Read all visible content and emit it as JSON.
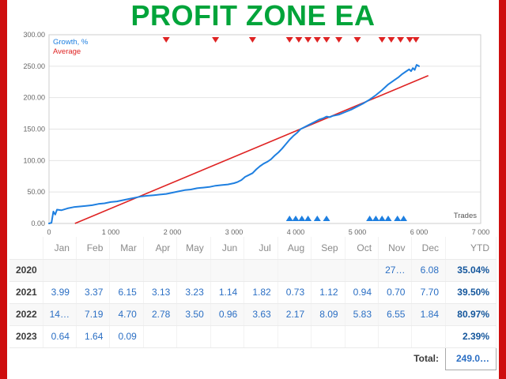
{
  "title": "PROFIT ZONE EA",
  "colors": {
    "title_green": "#00a43a",
    "growth_blue": "#1e7fe0",
    "average_red": "#df2323",
    "side_red": "#ce0e0e",
    "grid": "#e4e4e4",
    "axis_text": "#666666"
  },
  "chart_data": {
    "type": "line",
    "title": "",
    "xlabel_corner": "Trades",
    "xlim": [
      0,
      7000
    ],
    "ylim": [
      0,
      300
    ],
    "grid": "horizontal",
    "legend_position": "top-left",
    "x_ticks": [
      "0",
      "1 000",
      "2 000",
      "3 000",
      "4 000",
      "5 000",
      "6 000",
      "7 000"
    ],
    "x_tick_values": [
      0,
      1000,
      2000,
      3000,
      4000,
      5000,
      6000,
      7000
    ],
    "y_ticks": [
      "0.00",
      "50.00",
      "100.00",
      "150.00",
      "200.00",
      "250.00",
      "300.00"
    ],
    "y_tick_values": [
      0,
      50,
      100,
      150,
      200,
      250,
      300
    ],
    "legend": [
      {
        "label": "Growth, %",
        "color": "#1e7fe0"
      },
      {
        "label": "Average",
        "color": "#df2323"
      }
    ],
    "series": [
      {
        "name": "Growth, %",
        "type": "line",
        "color": "#1e7fe0",
        "points": [
          [
            0,
            0
          ],
          [
            40,
            1
          ],
          [
            70,
            19
          ],
          [
            100,
            14
          ],
          [
            130,
            22
          ],
          [
            200,
            21
          ],
          [
            300,
            24
          ],
          [
            400,
            26
          ],
          [
            500,
            27
          ],
          [
            600,
            28
          ],
          [
            700,
            29
          ],
          [
            800,
            31
          ],
          [
            900,
            32
          ],
          [
            1000,
            34
          ],
          [
            1100,
            35
          ],
          [
            1200,
            37
          ],
          [
            1300,
            39
          ],
          [
            1400,
            41
          ],
          [
            1500,
            43
          ],
          [
            1600,
            44
          ],
          [
            1700,
            45
          ],
          [
            1800,
            46
          ],
          [
            1900,
            47
          ],
          [
            2000,
            49
          ],
          [
            2100,
            51
          ],
          [
            2200,
            53
          ],
          [
            2300,
            54
          ],
          [
            2400,
            56
          ],
          [
            2500,
            57
          ],
          [
            2600,
            58
          ],
          [
            2700,
            60
          ],
          [
            2800,
            61
          ],
          [
            2900,
            62
          ],
          [
            3000,
            64
          ],
          [
            3060,
            66
          ],
          [
            3120,
            69
          ],
          [
            3180,
            74
          ],
          [
            3240,
            77
          ],
          [
            3300,
            80
          ],
          [
            3360,
            86
          ],
          [
            3420,
            91
          ],
          [
            3480,
            95
          ],
          [
            3540,
            98
          ],
          [
            3600,
            102
          ],
          [
            3660,
            108
          ],
          [
            3720,
            113
          ],
          [
            3780,
            119
          ],
          [
            3840,
            126
          ],
          [
            3900,
            133
          ],
          [
            3960,
            139
          ],
          [
            4020,
            144
          ],
          [
            4080,
            150
          ],
          [
            4140,
            153
          ],
          [
            4200,
            156
          ],
          [
            4260,
            159
          ],
          [
            4320,
            162
          ],
          [
            4380,
            165
          ],
          [
            4440,
            167
          ],
          [
            4500,
            170
          ],
          [
            4550,
            169
          ],
          [
            4600,
            171
          ],
          [
            4700,
            173
          ],
          [
            4800,
            177
          ],
          [
            4900,
            181
          ],
          [
            5000,
            186
          ],
          [
            5100,
            191
          ],
          [
            5200,
            197
          ],
          [
            5300,
            204
          ],
          [
            5400,
            212
          ],
          [
            5500,
            221
          ],
          [
            5600,
            228
          ],
          [
            5660,
            232
          ],
          [
            5720,
            237
          ],
          [
            5780,
            241
          ],
          [
            5840,
            245
          ],
          [
            5870,
            242
          ],
          [
            5900,
            247
          ],
          [
            5930,
            244
          ],
          [
            5960,
            252
          ],
          [
            6000,
            250
          ]
        ]
      },
      {
        "name": "Average",
        "type": "line",
        "color": "#df2323",
        "points": [
          [
            420,
            0
          ],
          [
            6150,
            235
          ]
        ]
      }
    ],
    "markers": {
      "top_red_x": [
        1900,
        2700,
        3300,
        3900,
        4050,
        4200,
        4350,
        4500,
        4700,
        5000,
        5400,
        5550,
        5700,
        5850,
        5950
      ],
      "bottom_blue_x": [
        3900,
        4000,
        4100,
        4200,
        4350,
        4500,
        5200,
        5300,
        5400,
        5500,
        5650,
        5750
      ]
    }
  },
  "table": {
    "columns": [
      "",
      "Jan",
      "Feb",
      "Mar",
      "Apr",
      "May",
      "Jun",
      "Jul",
      "Aug",
      "Sep",
      "Oct",
      "Nov",
      "Dec",
      "YTD"
    ],
    "rows": [
      {
        "year": "2020",
        "values": [
          "",
          "",
          "",
          "",
          "",
          "",
          "",
          "",
          "",
          "",
          "27…",
          "6.08"
        ],
        "ytd": "35.04%"
      },
      {
        "year": "2021",
        "values": [
          "3.99",
          "3.37",
          "6.15",
          "3.13",
          "3.23",
          "1.14",
          "1.82",
          "0.73",
          "1.12",
          "0.94",
          "0.70",
          "7.70"
        ],
        "ytd": "39.50%"
      },
      {
        "year": "2022",
        "values": [
          "14…",
          "7.19",
          "4.70",
          "2.78",
          "3.50",
          "0.96",
          "3.63",
          "2.17",
          "8.09",
          "5.83",
          "6.55",
          "1.84"
        ],
        "ytd": "80.97%"
      },
      {
        "year": "2023",
        "values": [
          "0.64",
          "1.64",
          "0.09",
          "",
          "",
          "",
          "",
          "",
          "",
          "",
          "",
          ""
        ],
        "ytd": "2.39%"
      }
    ],
    "total_label": "Total:",
    "total_value": "249.0…"
  }
}
